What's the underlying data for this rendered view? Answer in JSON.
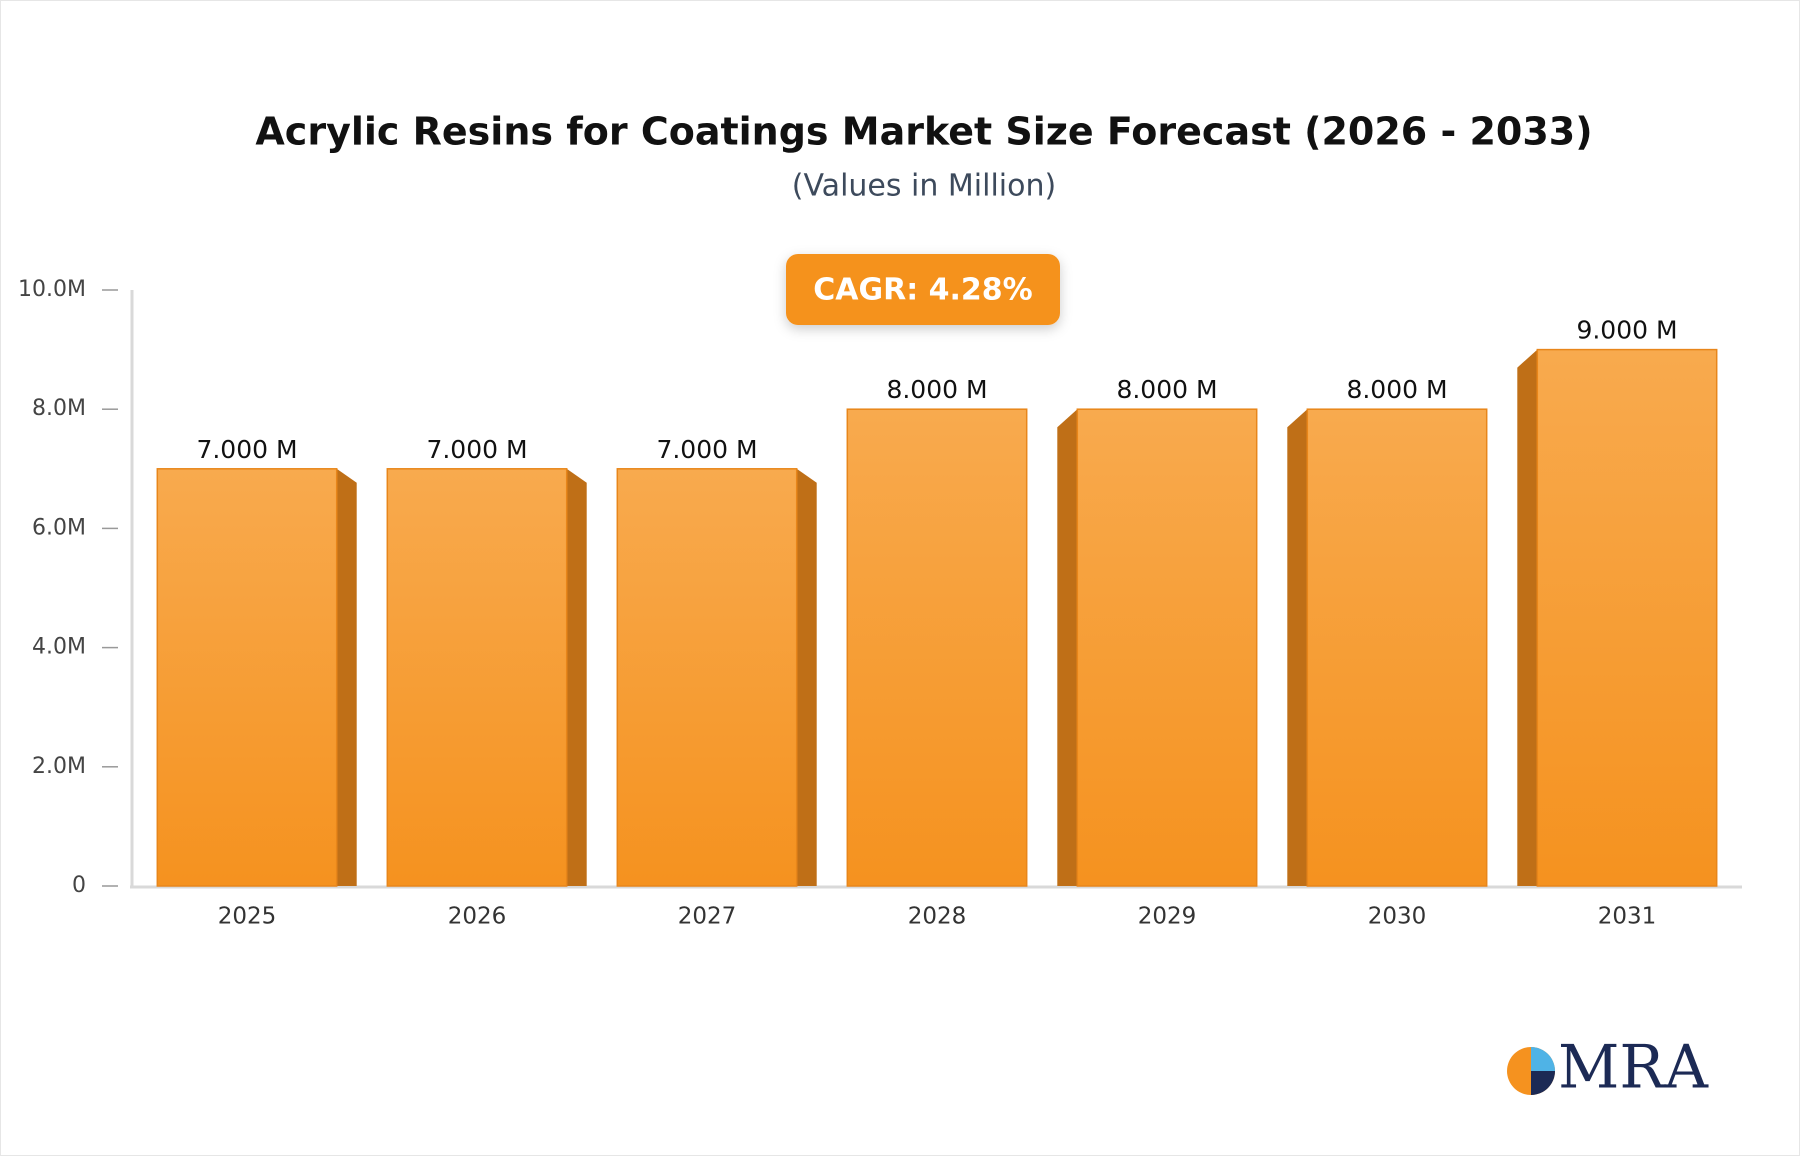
{
  "chart_data": {
    "type": "bar",
    "title": "Acrylic Resins for Coatings Market Size Forecast (2026 - 2033)",
    "subtitle": "(Values in Million)",
    "annotation": "CAGR: 4.28%",
    "watermark": "MRA",
    "categories": [
      "2025",
      "2026",
      "2027",
      "2028",
      "2029",
      "2030",
      "2031"
    ],
    "values": [
      7,
      7,
      7,
      8,
      8,
      8,
      9
    ],
    "value_labels": [
      "7.000 M",
      "7.000 M",
      "7.000 M",
      "8.000 M",
      "8.000 M",
      "8.000 M",
      "9.000 M"
    ],
    "color": "#f69a2e",
    "ylim": [
      0,
      10
    ],
    "yticks": [
      0,
      {
        "value": 2,
        "label": "2.0M"
      },
      {
        "value": 4,
        "label": "4.0M"
      },
      {
        "value": 6,
        "label": "6.0M"
      },
      {
        "value": 8,
        "label": "8.0M"
      },
      {
        "value": 10,
        "label": "10.0M"
      }
    ],
    "grid": false
  }
}
